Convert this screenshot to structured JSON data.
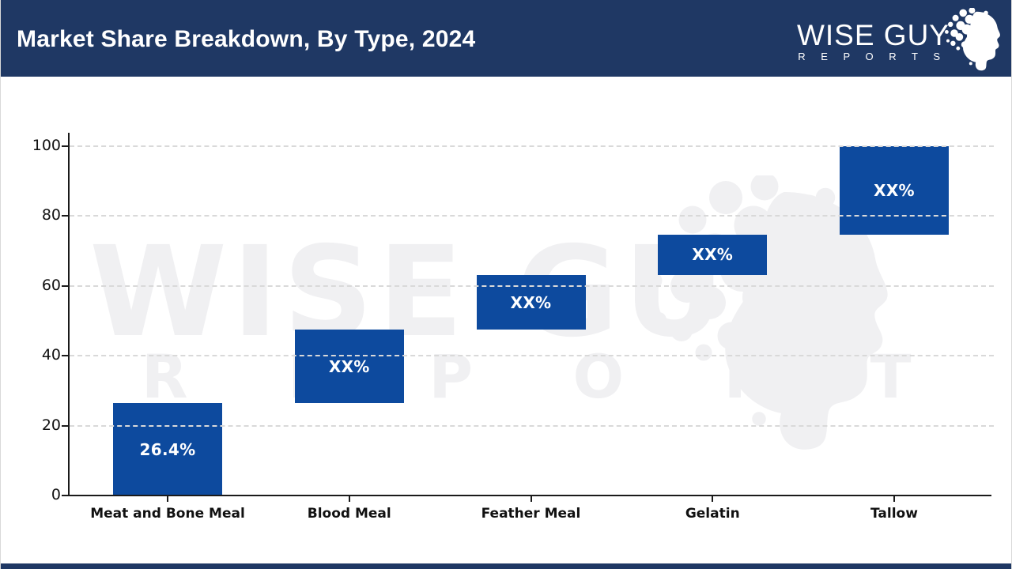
{
  "header": {
    "title": "Market Share Breakdown, By Type, 2024",
    "logo": {
      "line1": "WISE GUY",
      "line2": "R E P O R T S"
    }
  },
  "watermark": {
    "line1": "WISE GUY",
    "line2": "R E P O R T S"
  },
  "chart_data": {
    "type": "bar",
    "subtype": "waterfall",
    "title": "Market Share Breakdown, By Type, 2024",
    "categories": [
      "Meat and Bone Meal",
      "Blood Meal",
      "Feather Meal",
      "Gelatin",
      "Tallow"
    ],
    "segments": [
      {
        "category": "Meat and Bone Meal",
        "start": 0,
        "end": 26.4,
        "label": "26.4%"
      },
      {
        "category": "Blood Meal",
        "start": 26.4,
        "end": 47.5,
        "label": "XX%"
      },
      {
        "category": "Feather Meal",
        "start": 47.5,
        "end": 63.1,
        "label": "XX%"
      },
      {
        "category": "Gelatin",
        "start": 63.1,
        "end": 74.7,
        "label": "XX%"
      },
      {
        "category": "Tallow",
        "start": 74.7,
        "end": 100,
        "label": "XX%"
      }
    ],
    "ylim": [
      0,
      100
    ],
    "yticks": [
      0,
      20,
      40,
      60,
      80,
      100
    ],
    "xlabel": "",
    "ylabel": "",
    "grid": "horizontal-dashed",
    "legend": "none",
    "colors": {
      "bar": "#0d4a9e",
      "bar_label": "#ffffff"
    }
  },
  "colors": {
    "header_bg": "#1f3864",
    "footer_bg": "#1f3864",
    "axis": "#1a1a1a",
    "gridline": "#d9d9d9",
    "watermark": "#f0f0f2",
    "canvas": "#ffffff"
  }
}
